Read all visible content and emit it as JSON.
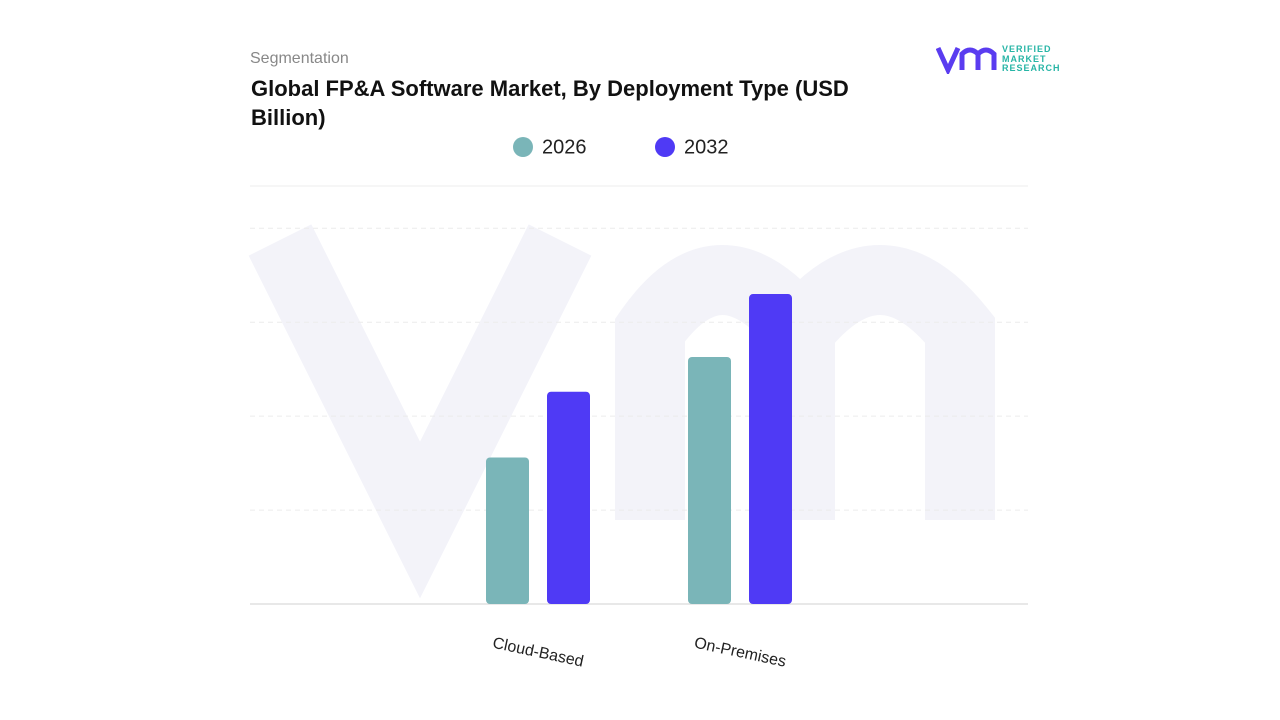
{
  "header": {
    "section": "Segmentation",
    "logo_lines": [
      "VERIFIED",
      "MARKET",
      "RESEARCH"
    ]
  },
  "chart_data": {
    "type": "bar",
    "title": "Global FP&A Software Market, By Deployment Type (USD Billion)",
    "categories": [
      "Cloud-Based",
      "On-Premises"
    ],
    "series": [
      {
        "name": "2026",
        "color": "#7ab5b8",
        "values": [
          1.56,
          2.63
        ]
      },
      {
        "name": "2032",
        "color": "#4f3af5",
        "values": [
          2.26,
          3.3
        ]
      }
    ],
    "ylim": [
      0,
      4.45
    ],
    "yticks": [
      0,
      1,
      2,
      3,
      4
    ],
    "grid": true
  }
}
